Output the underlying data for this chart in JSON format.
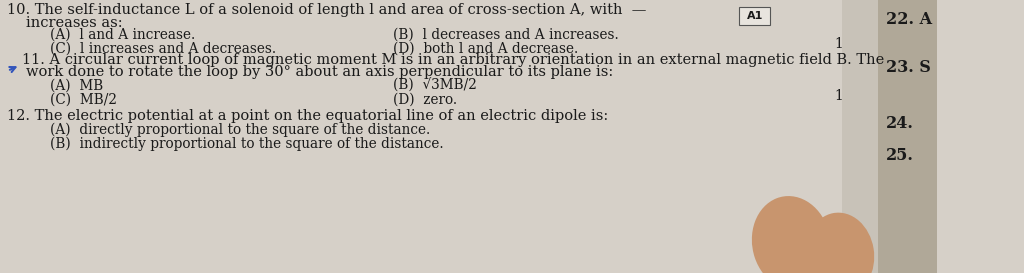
{
  "bg_color": "#d6d0c8",
  "text_color": "#1a1a1a",
  "title_q10": "10. The self-inductance L of a solenoid of length l and area of cross-section A, with  —",
  "q10_sub": "increases as:",
  "q10_A": "(A)  l and A increase.",
  "q10_B": "(B)  l decreases and A increases.",
  "q10_C": "(C)  l increases and A decreases.",
  "q10_D": "(D)  both l and A decrease.",
  "q10_mark": "1",
  "q11_text1": "11. A circular current loop of magnetic moment M is in an arbitrary orientation in an external magnetic field B. The",
  "q11_text2": "work done to rotate the loop by 30° about an axis perpendicular to its plane is:",
  "q11_A": "(A)  MB",
  "q11_B": "(B)  √3MB/2",
  "q11_C": "(C)  MB/2",
  "q11_D": "(D)  zero.",
  "q11_mark": "1",
  "q12_text": "12. The electric potential at a point on the equatorial line of an electric dipole is:",
  "q12_A": "(A)  directly proportional to the square of the distance.",
  "q12_B": "(B)  indirectly proportional to the square of the distance.",
  "right_col_22": "22. A",
  "right_col_23": "23. S",
  "right_col_24": "24.",
  "right_col_25": "25.",
  "checkbox_label": "A1",
  "font_size_main": 10.5,
  "font_size_options": 9.8,
  "right_strip_color": "#b0a898",
  "right_margin_color": "#c8c2b8",
  "checkbox_bg": "#e8e4de",
  "checkbox_edge": "#555555",
  "finger_color1": "#c8956e",
  "finger_color2": "#c8956e",
  "blue_mark_color": "#3355bb"
}
